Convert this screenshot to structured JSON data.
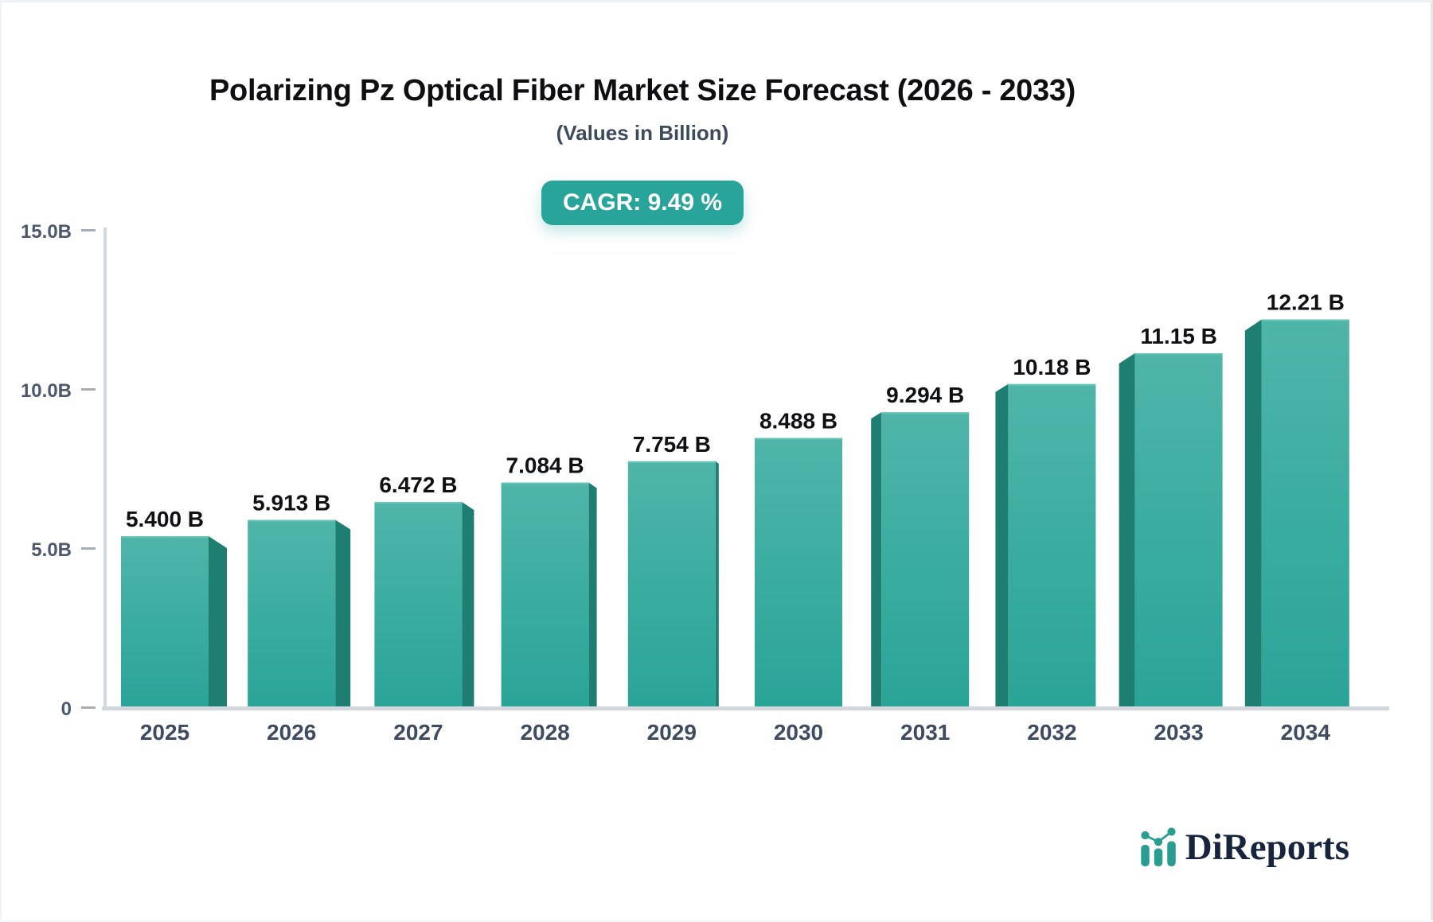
{
  "header": {
    "title": "Polarizing Pz Optical Fiber Market Size Forecast (2026 - 2033)",
    "subtitle": "(Values in Billion)",
    "cagr_badge": "CAGR: 9.49 %"
  },
  "chart_data": {
    "type": "bar",
    "title": "Polarizing Pz Optical Fiber Market Size Forecast (2026 - 2033)",
    "subtitle": "(Values in Billion)",
    "cagr_percent": 9.49,
    "categories": [
      "2025",
      "2026",
      "2027",
      "2028",
      "2029",
      "2030",
      "2031",
      "2032",
      "2033",
      "2034"
    ],
    "values": [
      5.4,
      5.913,
      6.472,
      7.084,
      7.754,
      8.488,
      9.294,
      10.18,
      11.15,
      12.21
    ],
    "value_labels": [
      "5.400 B",
      "5.913 B",
      "6.472 B",
      "7.084 B",
      "7.754 B",
      "8.488 B",
      "9.294 B",
      "10.18 B",
      "11.15 B",
      "12.21 B"
    ],
    "y_ticks": [
      {
        "value": 0,
        "label": "0"
      },
      {
        "value": 5,
        "label": "5.0B"
      },
      {
        "value": 10,
        "label": "10.0B"
      },
      {
        "value": 15,
        "label": "15.0B"
      }
    ],
    "ylim": [
      0,
      15
    ],
    "xlabel": "",
    "ylabel": "",
    "grid": "off",
    "legend": "none",
    "bar_style": "3d-perspective-center-vanishing"
  },
  "branding": {
    "logo_text": "DiReports",
    "logo_icon": "mini-bar-line-chart-icon"
  },
  "colors": {
    "bar_top": "#50b5a9",
    "bar_mid": "#3aada0",
    "bar_bottom": "#2aa497",
    "bar_side": "#1e7e72",
    "bar_top_highlight": "#68c3b7",
    "badge_bg": "#29a49a",
    "badge_text": "#ffffff",
    "axis_line": "#d2d7dd",
    "tick_dash": "#a6adb8",
    "tick_text": "#4c586d",
    "year_text": "#3e4b61",
    "value_text": "#0e1013",
    "title_text": "#0d0f13",
    "subtitle_text": "#3d4a5c",
    "logo_text_color": "#16243d",
    "logo_icon_teal": "#2a9d93"
  }
}
